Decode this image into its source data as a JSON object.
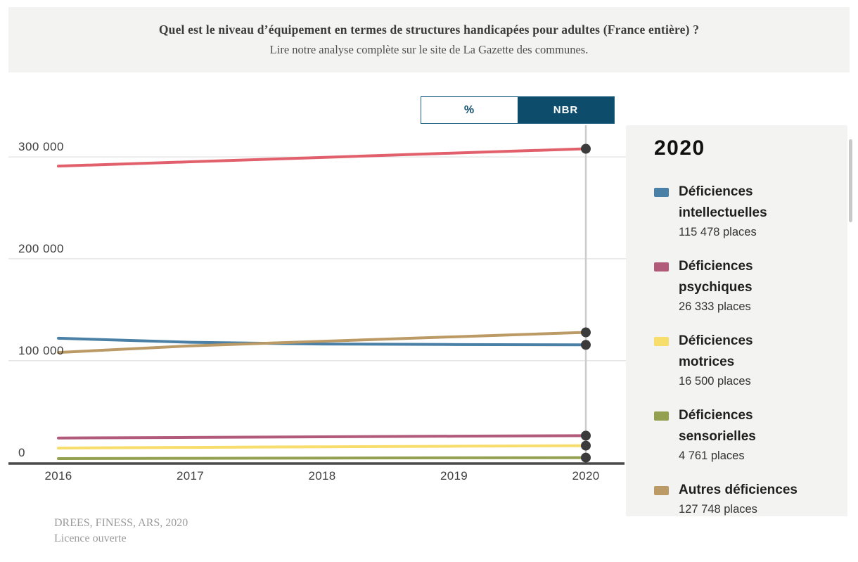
{
  "header": {
    "title": "Quel est le niveau d’équipement en termes de structures handicapées pour adultes (France entière) ?",
    "subtitle": "Lire notre analyse complète sur le site de La Gazette des communes."
  },
  "toggle": {
    "percent_label": "%",
    "nbr_label": "NBR",
    "selected": "NBR",
    "accent_color": "#0e4c6b"
  },
  "chart_data": {
    "type": "line",
    "x": [
      2016,
      2017,
      2018,
      2019,
      2020
    ],
    "x_labels": [
      "2016",
      "2017",
      "2018",
      "2019",
      "2020"
    ],
    "y_ticks": [
      {
        "value": 0,
        "label": "0"
      },
      {
        "value": 100000,
        "label": "100 000"
      },
      {
        "value": 200000,
        "label": "200 000"
      },
      {
        "value": 300000,
        "label": "300 000"
      }
    ],
    "ylim": [
      0,
      330000
    ],
    "grid": true,
    "legend_position": "right",
    "highlight_year": 2020,
    "series": [
      {
        "id": "total-red",
        "name": "",
        "color": "#e2606c",
        "values": [
          291000,
          295200,
          299500,
          303800,
          308000
        ],
        "legend_visible": false
      },
      {
        "id": "intellectuelles",
        "name": "Déficiences intellectuelles",
        "color": "#4a80a6",
        "values": [
          122000,
          118000,
          116300,
          115800,
          115478
        ],
        "legend_visible": true
      },
      {
        "id": "autres",
        "name": "Autres déficiences",
        "color": "#bb9a66",
        "values": [
          108000,
          114500,
          119000,
          123400,
          127748
        ],
        "legend_visible": true
      },
      {
        "id": "psychiques",
        "name": "Déficiences psychiques",
        "color": "#b25a7a",
        "values": [
          24000,
          24600,
          25200,
          25800,
          26333
        ],
        "legend_visible": true
      },
      {
        "id": "motrices",
        "name": "Déficiences motrices",
        "color": "#f6dd6c",
        "values": [
          14200,
          14800,
          15400,
          15950,
          16500
        ],
        "legend_visible": true
      },
      {
        "id": "sensorielles",
        "name": "Déficiences sensorielles",
        "color": "#92a050",
        "values": [
          3800,
          4050,
          4300,
          4550,
          4761
        ],
        "legend_visible": true
      }
    ]
  },
  "legend": {
    "title": "2020",
    "entries": [
      {
        "name_lines": [
          "Déficiences",
          "intellectuelles"
        ],
        "places": "115 478 places",
        "color": "#4a80a6"
      },
      {
        "name_lines": [
          "Déficiences",
          "psychiques"
        ],
        "places": "26 333 places",
        "color": "#b25a7a"
      },
      {
        "name_lines": [
          "Déficiences",
          "motrices"
        ],
        "places": "16 500 places",
        "color": "#f6dd6c"
      },
      {
        "name_lines": [
          "Déficiences",
          "sensorielles"
        ],
        "places": "4 761 places",
        "color": "#92a050"
      },
      {
        "name_lines": [
          "Autres déficiences"
        ],
        "places": "127 748 places",
        "color": "#bb9a66"
      }
    ]
  },
  "source": {
    "line1": "DREES, FINESS, ARS, 2020",
    "line2": "Licence ouverte"
  }
}
